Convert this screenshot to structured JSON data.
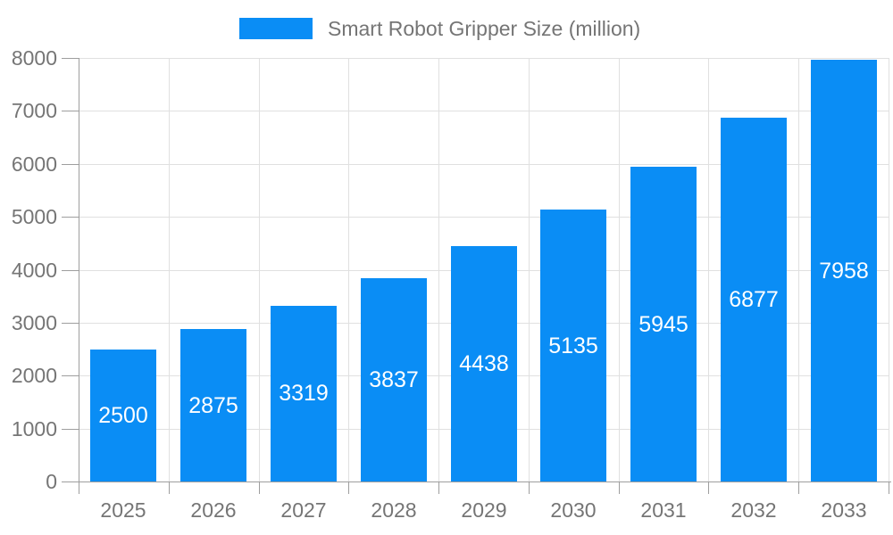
{
  "chart_data": {
    "type": "bar",
    "title": "Smart Robot Gripper Size (million)",
    "legend": {
      "label": "Smart Robot Gripper Size (million)",
      "position": "top"
    },
    "categories": [
      "2025",
      "2026",
      "2027",
      "2028",
      "2029",
      "2030",
      "2031",
      "2032",
      "2033"
    ],
    "values": [
      2500,
      2875,
      3319,
      3837,
      4438,
      5135,
      5945,
      6877,
      7958
    ],
    "xlabel": "",
    "ylabel": "",
    "ylim": [
      0,
      8000
    ],
    "ytick_step": 1000,
    "ytick_labels": [
      "0",
      "1000",
      "2000",
      "3000",
      "4000",
      "5000",
      "6000",
      "7000",
      "8000"
    ],
    "grid": "on",
    "value_labels": "inside-center-white",
    "colors": {
      "bar": "#0a8df5",
      "axis": "#9e9e9e",
      "gridline": "#e0e0e0",
      "text": "#757575",
      "value_label_text": "#ffffff",
      "background": "#ffffff"
    }
  }
}
